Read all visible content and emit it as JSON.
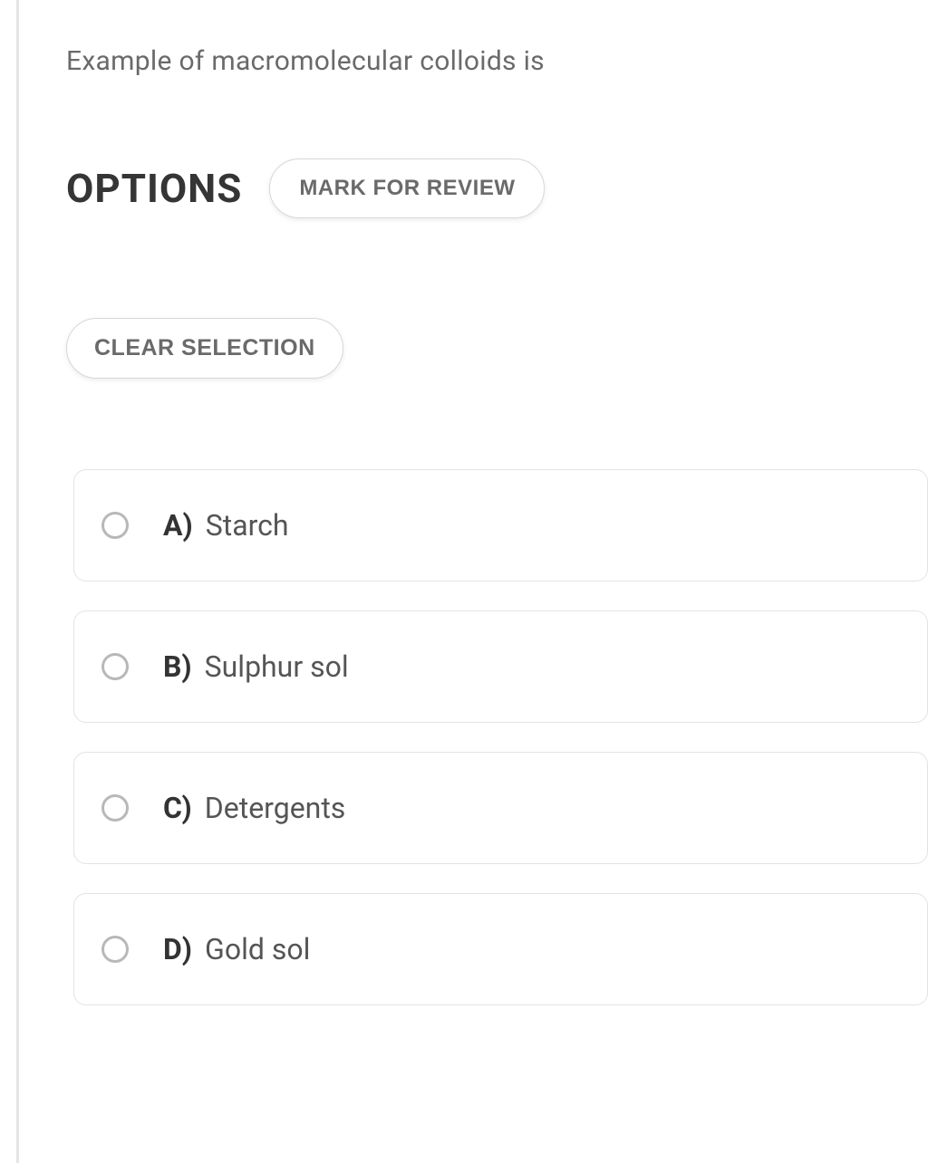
{
  "question": {
    "text": "Example of macromolecular colloids is"
  },
  "labels": {
    "options_heading": "OPTIONS",
    "mark_for_review": "MARK FOR REVIEW",
    "clear_selection": "CLEAR SELECTION"
  },
  "options": [
    {
      "letter": "A)",
      "text": "Starch"
    },
    {
      "letter": "B)",
      "text": "Sulphur sol"
    },
    {
      "letter": "C)",
      "text": "Detergents"
    },
    {
      "letter": "D)",
      "text": "Gold sol"
    }
  ],
  "colors": {
    "text_muted": "#6a6a6a",
    "text_dark": "#353535",
    "border": "#e3e3e3",
    "radio_border": "#b8b8b8",
    "left_border": "#e5e5e5",
    "background": "#ffffff"
  }
}
